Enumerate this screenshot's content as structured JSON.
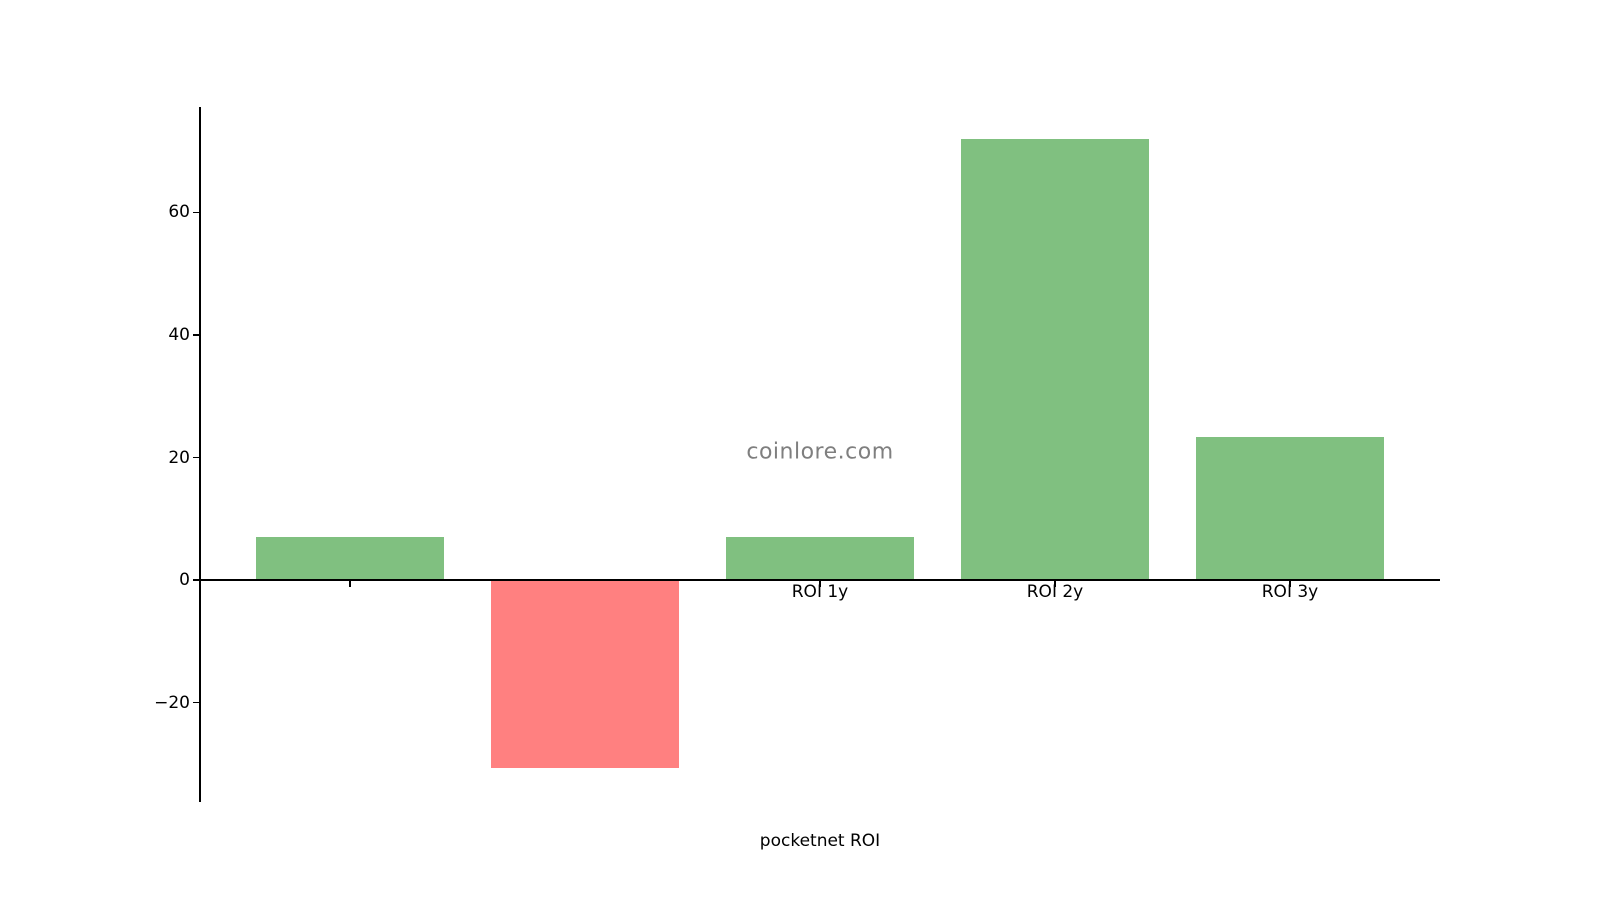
{
  "chart_data": {
    "type": "bar",
    "title": "pocketnet ROI",
    "xlabel": "pocketnet ROI",
    "ylabel": "",
    "watermark": "coinlore.com",
    "categories": [
      "",
      "",
      "ROI 1y",
      "ROI 2y",
      "ROI 3y"
    ],
    "values": [
      7,
      -30.7,
      7,
      72,
      23.3
    ],
    "bar_colors": [
      "#80c080",
      "#ff8080",
      "#80c080",
      "#80c080",
      "#80c080"
    ],
    "positive_color": "#80c080",
    "negative_color": "#ff8080",
    "yticks": [
      60,
      40,
      20,
      0,
      -20
    ],
    "ytick_labels": [
      "60",
      "40",
      "20",
      "0",
      "−20"
    ],
    "ylim": [
      -36.2,
      77.2
    ],
    "grid": false,
    "legend": null,
    "axis_color": "#000000",
    "tick_text_color": "#000000",
    "watermark_color": "#7f7f7f",
    "background": "#ffffff"
  }
}
